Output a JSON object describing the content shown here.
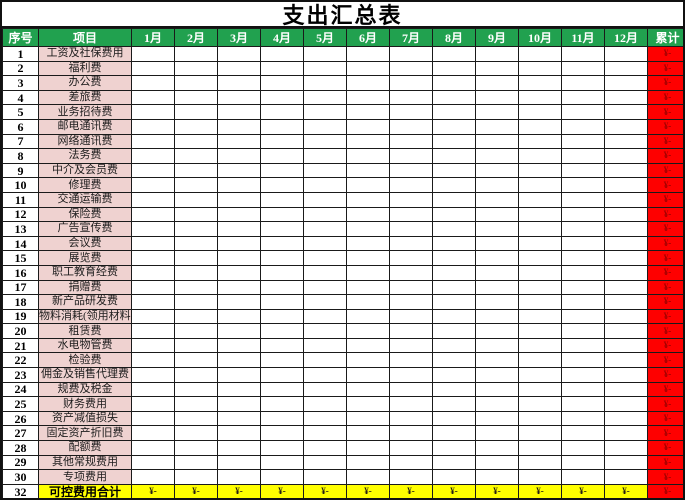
{
  "title": "支出汇总表",
  "columns": {
    "index": "序号",
    "item": "项目",
    "months": [
      "1月",
      "2月",
      "3月",
      "4月",
      "5月",
      "6月",
      "7月",
      "8月",
      "9月",
      "10月",
      "11月",
      "12月"
    ],
    "total": "累计"
  },
  "rows": [
    {
      "no": "1",
      "label": "工资及社保费用"
    },
    {
      "no": "2",
      "label": "福利费"
    },
    {
      "no": "3",
      "label": "办公费"
    },
    {
      "no": "4",
      "label": "差旅费"
    },
    {
      "no": "5",
      "label": "业务招待费"
    },
    {
      "no": "6",
      "label": "邮电通讯费"
    },
    {
      "no": "7",
      "label": "网络通讯费"
    },
    {
      "no": "8",
      "label": "法务费"
    },
    {
      "no": "9",
      "label": "中介及会员费"
    },
    {
      "no": "10",
      "label": "修理费"
    },
    {
      "no": "11",
      "label": "交通运输费"
    },
    {
      "no": "12",
      "label": "保险费"
    },
    {
      "no": "13",
      "label": "广告宣传费"
    },
    {
      "no": "14",
      "label": "会议费"
    },
    {
      "no": "15",
      "label": "展览费"
    },
    {
      "no": "16",
      "label": "职工教育经费"
    },
    {
      "no": "17",
      "label": "捐赠费"
    },
    {
      "no": "18",
      "label": "新产品研发费"
    },
    {
      "no": "19",
      "label": "物料消耗(领用材料)"
    },
    {
      "no": "20",
      "label": "租赁费"
    },
    {
      "no": "21",
      "label": "水电物管费"
    },
    {
      "no": "22",
      "label": "检验费"
    },
    {
      "no": "23",
      "label": "佣金及销售代理费"
    },
    {
      "no": "24",
      "label": "规费及税金"
    },
    {
      "no": "25",
      "label": "财务费用"
    },
    {
      "no": "26",
      "label": "资产减值损失"
    },
    {
      "no": "27",
      "label": "固定资产折旧费"
    },
    {
      "no": "28",
      "label": "配额费"
    },
    {
      "no": "29",
      "label": "其他常规费用"
    },
    {
      "no": "30",
      "label": "专项费用"
    }
  ],
  "month_cell_value": "",
  "accumulated_value": "¥-",
  "sum_row": {
    "no": "32",
    "label": "可控费用合计",
    "month_value": "¥-",
    "total_value": "¥-"
  },
  "colors": {
    "header_green": "#21a14f",
    "item_pink": "#efd2d0",
    "total_red": "#fe0000",
    "total_red_text": "#a00000",
    "sum_yellow": "#ffff00",
    "grid_line": "#1a1a1a"
  }
}
